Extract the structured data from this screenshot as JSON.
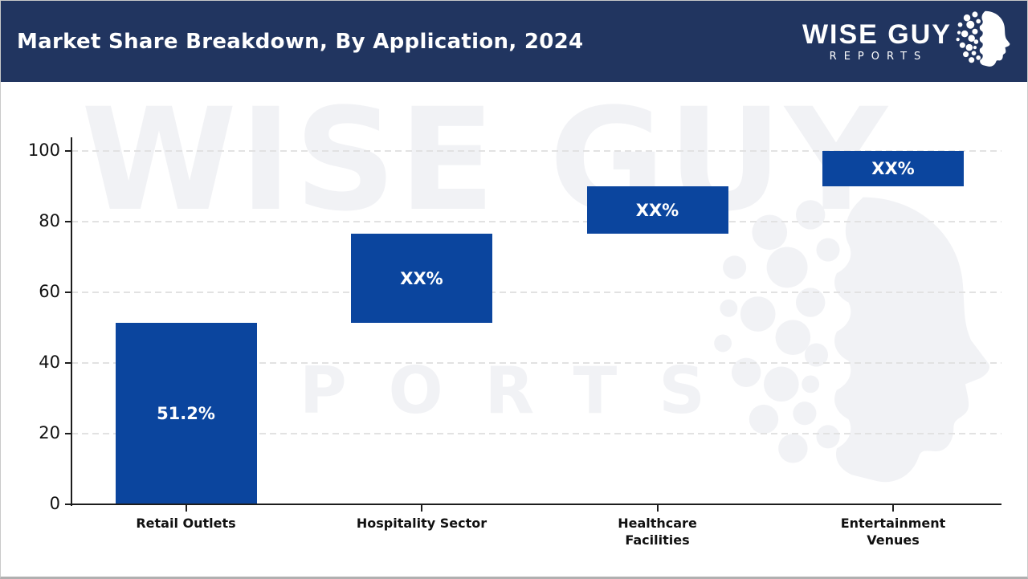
{
  "header": {
    "title": "Market Share Breakdown, By Application, 2024",
    "logo": {
      "line1": "WISE GUY",
      "line2": "REPORTS",
      "head_icon": "dotted-head-profile"
    }
  },
  "watermark": {
    "line1": "WISE GUY",
    "line2": "PORTS",
    "head_icon": "dotted-head-profile",
    "color": "#f1f2f5"
  },
  "colors": {
    "header_bg": "#213560",
    "bar": "#0b459e",
    "axis": "#1d1d1d",
    "gridline": "#e2e2e2",
    "bar_label_text": "#ffffff",
    "title_text": "#ffffff"
  },
  "chart_data": {
    "type": "bar",
    "subtype": "waterfall",
    "title": "Market Share Breakdown, By Application, 2024",
    "xlabel": "",
    "ylabel": "",
    "ylim": [
      0,
      103.5
    ],
    "yticks": [
      0,
      20,
      40,
      60,
      80,
      100
    ],
    "grid": "horizontal-dashed",
    "legend": false,
    "categories": [
      {
        "lines": [
          "Retail Outlets"
        ]
      },
      {
        "lines": [
          "Hospitality Sector"
        ]
      },
      {
        "lines": [
          "Healthcare",
          "Facilities"
        ]
      },
      {
        "lines": [
          "Entertainment",
          "Venues"
        ]
      }
    ],
    "series": [
      {
        "name": "Retail Outlets",
        "start": 0,
        "end": 51.2,
        "label": "51.2%"
      },
      {
        "name": "Hospitality Sector",
        "start": 51.2,
        "end": 76.5,
        "label": "XX%"
      },
      {
        "name": "Healthcare Facilities",
        "start": 76.5,
        "end": 89.8,
        "label": "XX%"
      },
      {
        "name": "Entertainment Venues",
        "start": 89.8,
        "end": 100,
        "label": "XX%"
      }
    ]
  }
}
